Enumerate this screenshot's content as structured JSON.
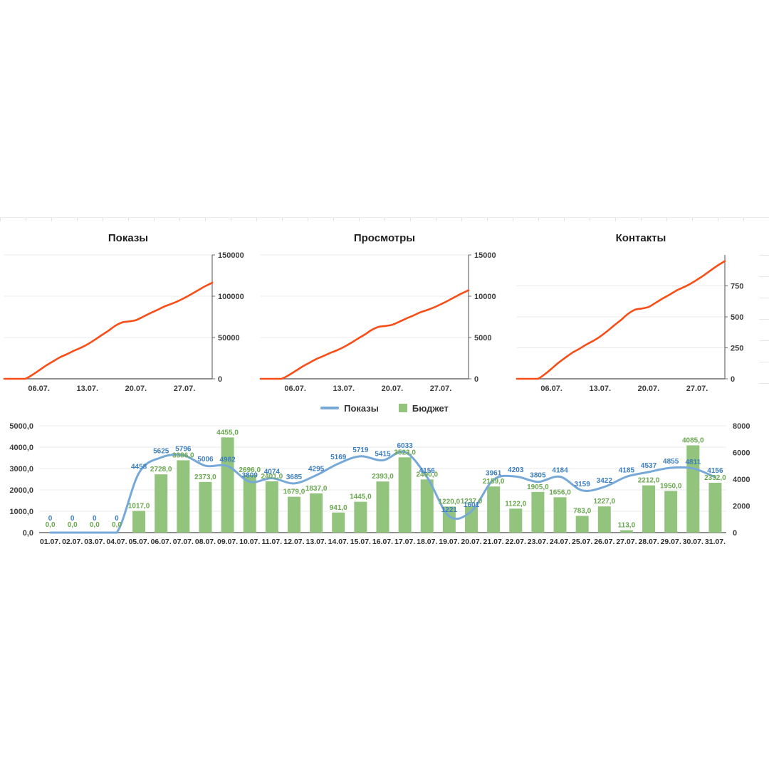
{
  "colors": {
    "orange": "#f94d17",
    "line_blue": "#76a9d8",
    "label_blue": "#3c7ebf",
    "bar_green": "#93c47d",
    "label_green": "#6aa84f",
    "grid": "#e8e8e8",
    "axis": "#6b6b6b",
    "text": "#222222"
  },
  "legend": {
    "impressions_label": "Показы",
    "budget_label": "Бюджет"
  },
  "chart_data": [
    {
      "type": "line",
      "title": "Показы",
      "x_tick_days": [
        6,
        13,
        20,
        27
      ],
      "x_tick_labels": [
        "06.07.",
        "13.07.",
        "20.07.",
        "27.07."
      ],
      "y_max": 150000,
      "y_ticks": [
        0,
        50000,
        100000,
        150000
      ],
      "y_tick_labels": [
        "0",
        "50000",
        "100000",
        "150000"
      ],
      "values": [
        0,
        0,
        0,
        0,
        4458,
        10083,
        15879,
        20885,
        25867,
        29676,
        33750,
        37435,
        41730,
        46899,
        52618,
        58033,
        64066,
        68222,
        69443,
        71044,
        75005,
        79208,
        83013,
        87197,
        90356,
        93778,
        97963,
        102500,
        107355,
        112166,
        116322
      ]
    },
    {
      "type": "line",
      "title": "Просмотры",
      "x_tick_days": [
        6,
        13,
        20,
        27
      ],
      "x_tick_labels": [
        "06.07.",
        "13.07.",
        "20.07.",
        "27.07."
      ],
      "y_max": 15000,
      "y_ticks": [
        0,
        5000,
        10000,
        15000
      ],
      "y_tick_labels": [
        "0",
        "5000",
        "10000",
        "15000"
      ],
      "values": [
        0,
        0,
        0,
        0,
        411,
        929,
        1463,
        1924,
        2382,
        2733,
        3108,
        3448,
        3843,
        4319,
        4846,
        5345,
        5901,
        6283,
        6396,
        6543,
        6908,
        7295,
        7646,
        8031,
        8322,
        8637,
        9022,
        9440,
        9887,
        10331,
        10713
      ]
    },
    {
      "type": "line",
      "title": "Контакты",
      "x_tick_days": [
        6,
        13,
        20,
        27
      ],
      "x_tick_labels": [
        "06.07.",
        "13.07.",
        "20.07.",
        "27.07."
      ],
      "y_max": 1000,
      "y_ticks": [
        0,
        250,
        500,
        750
      ],
      "y_tick_labels": [
        "0",
        "250",
        "500",
        "750"
      ],
      "values": [
        0,
        0,
        0,
        0,
        36,
        82,
        130,
        171,
        211,
        242,
        276,
        306,
        341,
        383,
        430,
        474,
        523,
        557,
        567,
        580,
        613,
        647,
        678,
        712,
        738,
        766,
        800,
        837,
        877,
        916,
        950
      ]
    },
    {
      "type": "combo",
      "categories": [
        "01.07.",
        "02.07.",
        "03.07.",
        "04.07.",
        "05.07.",
        "06.07.",
        "07.07.",
        "08.07.",
        "09.07.",
        "10.07.",
        "11.07.",
        "12.07.",
        "13.07.",
        "14.07.",
        "15.07.",
        "16.07.",
        "17.07.",
        "18.07.",
        "19.07.",
        "20.07.",
        "21.07.",
        "22.07.",
        "23.07.",
        "24.07.",
        "25.07.",
        "26.07.",
        "27.07.",
        "28.07.",
        "29.07.",
        "30.07.",
        "31.07."
      ],
      "series": [
        {
          "name": "Показы",
          "kind": "line",
          "axis": "right",
          "values": [
            0,
            0,
            0,
            0,
            4458,
            5625,
            5796,
            5006,
            4982,
            3809,
            4074,
            3685,
            4295,
            5169,
            5719,
            5415,
            6033,
            4156,
            1221,
            1601,
            3961,
            4203,
            3805,
            4184,
            3159,
            3422,
            4185,
            4537,
            4855,
            4811,
            4156
          ],
          "labels": [
            "0",
            "0",
            "0",
            "0",
            "4458",
            "5625",
            "5796",
            "5006",
            "4982",
            "3809",
            "4074",
            "3685",
            "4295",
            "5169",
            "5719",
            "5415",
            "6033",
            "4156",
            "1221",
            "1601",
            "3961",
            "4203",
            "3805",
            "4184",
            "3159",
            "3422",
            "4185",
            "4537",
            "4855",
            "4811",
            "4156"
          ]
        },
        {
          "name": "Бюджет",
          "kind": "bar",
          "axis": "left",
          "values": [
            0,
            0,
            0,
            0,
            1017,
            2728,
            3386,
            2373,
            4455,
            2696,
            2401,
            1679,
            1837,
            941,
            1445,
            2393,
            3523,
            2490,
            1220,
            1237,
            2159,
            1122,
            1905,
            1656,
            783,
            1227,
            113,
            2212,
            1950,
            4085,
            2332
          ],
          "labels": [
            "0,0",
            "0,0",
            "0,0",
            "0,0",
            "1017,0",
            "2728,0",
            "3386,0",
            "2373,0",
            "4455,0",
            "2696,0",
            "2401,0",
            "1679,0",
            "1837,0",
            "941,0",
            "1445,0",
            "2393,0",
            "3523,0",
            "2490,0",
            "1220,0",
            "1237,0",
            "2159,0",
            "1122,0",
            "1905,0",
            "1656,0",
            "783,0",
            "1227,0",
            "113,0",
            "2212,0",
            "1950,0",
            "4085,0",
            "2332,0"
          ]
        }
      ],
      "left_axis": {
        "max": 5000,
        "ticks": [
          0,
          1000,
          2000,
          3000,
          4000,
          5000
        ],
        "labels": [
          "0,0",
          "1000,0",
          "2000,0",
          "3000,0",
          "4000,0",
          "5000,0"
        ]
      },
      "right_axis": {
        "max": 8000,
        "ticks": [
          0,
          2000,
          4000,
          6000,
          8000
        ],
        "labels": [
          "0",
          "2000",
          "4000",
          "6000",
          "8000"
        ]
      }
    }
  ]
}
